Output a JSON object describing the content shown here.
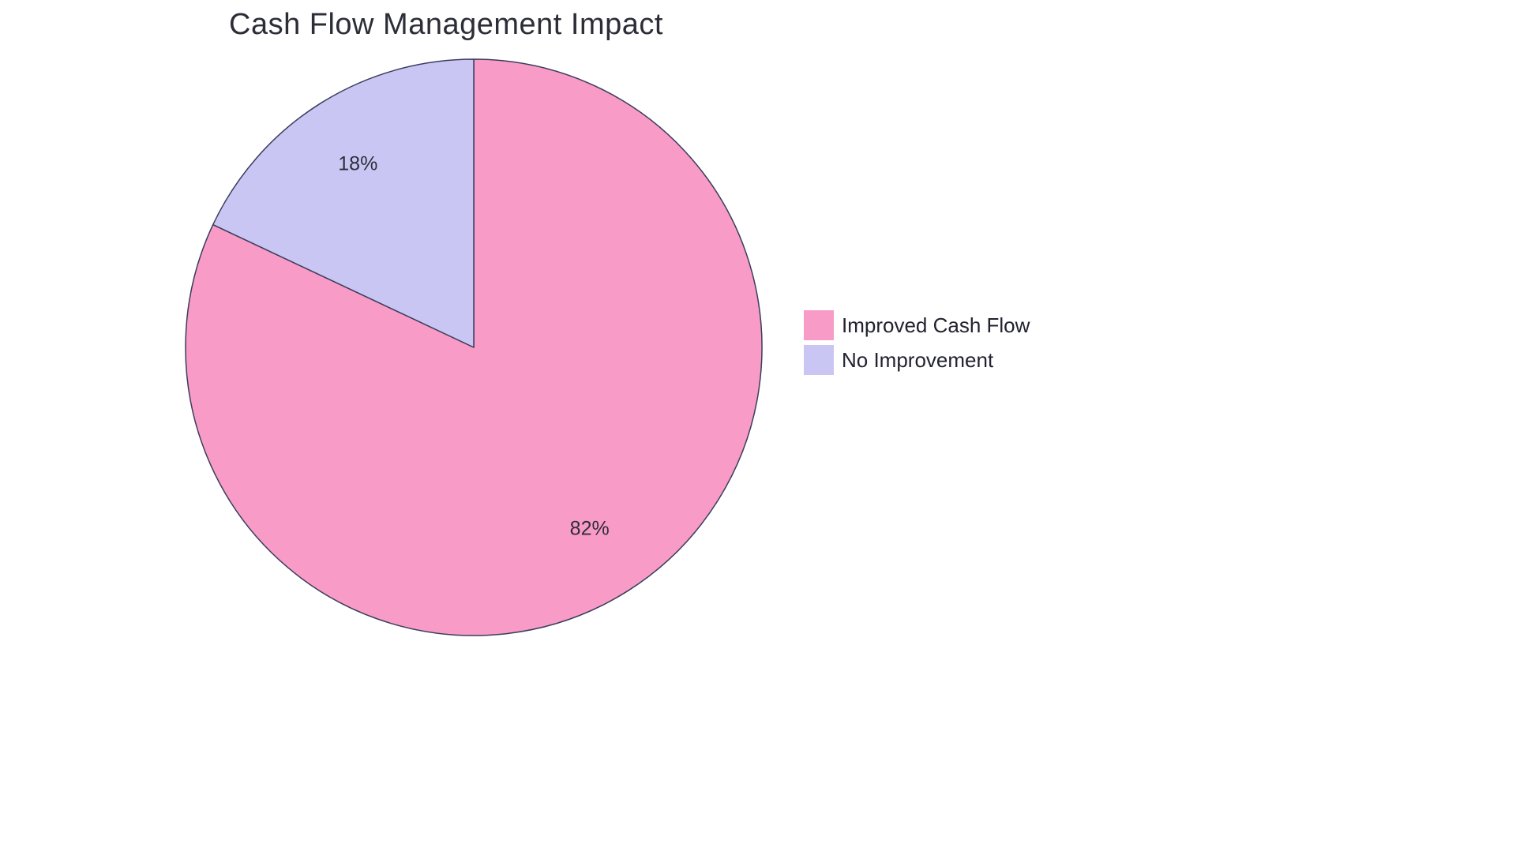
{
  "chart_data": {
    "type": "pie",
    "title": "Cash Flow Management Impact",
    "labels": [
      "Improved Cash Flow",
      "No Improvement"
    ],
    "values": [
      82,
      18
    ],
    "value_labels": [
      "82%",
      "18%"
    ],
    "colors": [
      "#F99BC7",
      "#C9C6F3"
    ],
    "stroke_color": "#3A3D5C",
    "text_color": "#2e2e3a",
    "legend_position": "right",
    "start_angle_deg": 0,
    "direction": "clockwise"
  }
}
